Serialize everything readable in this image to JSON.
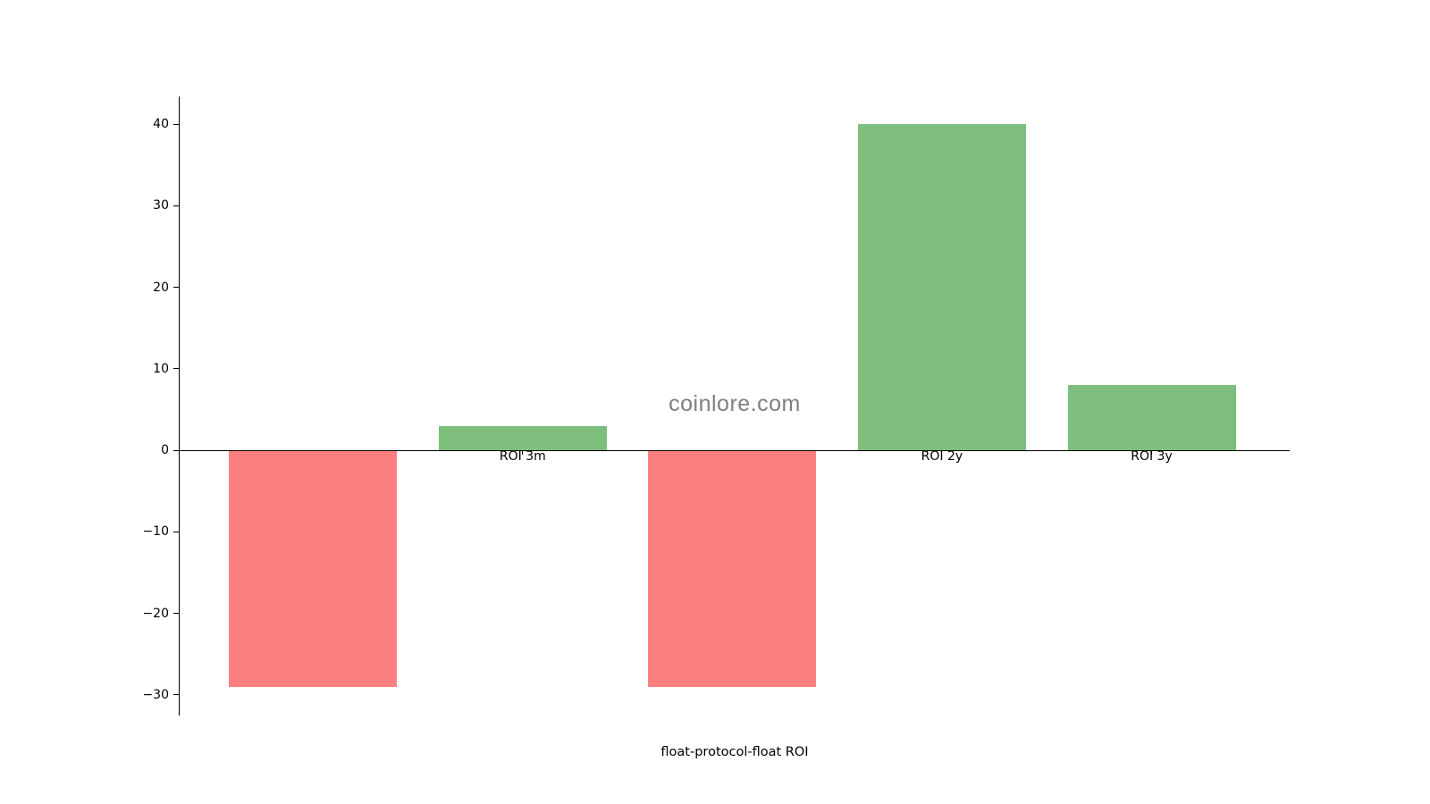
{
  "chart_data": {
    "type": "bar",
    "title": "float-protocol-float ROI",
    "watermark": "coinlore.com",
    "categories": [
      "",
      "ROI 3m",
      "",
      "ROI 2y",
      "ROI 3y"
    ],
    "values": [
      -29,
      3,
      -29,
      40,
      8
    ],
    "positive_color": "#7dbe7c",
    "negative_color": "#fd8080",
    "axis_color": "#000000",
    "tick_text_color": "#000000",
    "watermark_color": "#7f7f7f",
    "background_color": "#ffffff",
    "yticks": [
      40,
      30,
      20,
      10,
      0,
      -10,
      -20,
      -30
    ],
    "ylim": [
      -32.5,
      43.4
    ],
    "xlabel": "",
    "ylabel": "",
    "grid": false,
    "legend_position": "none",
    "x_axis_position": "zero"
  }
}
